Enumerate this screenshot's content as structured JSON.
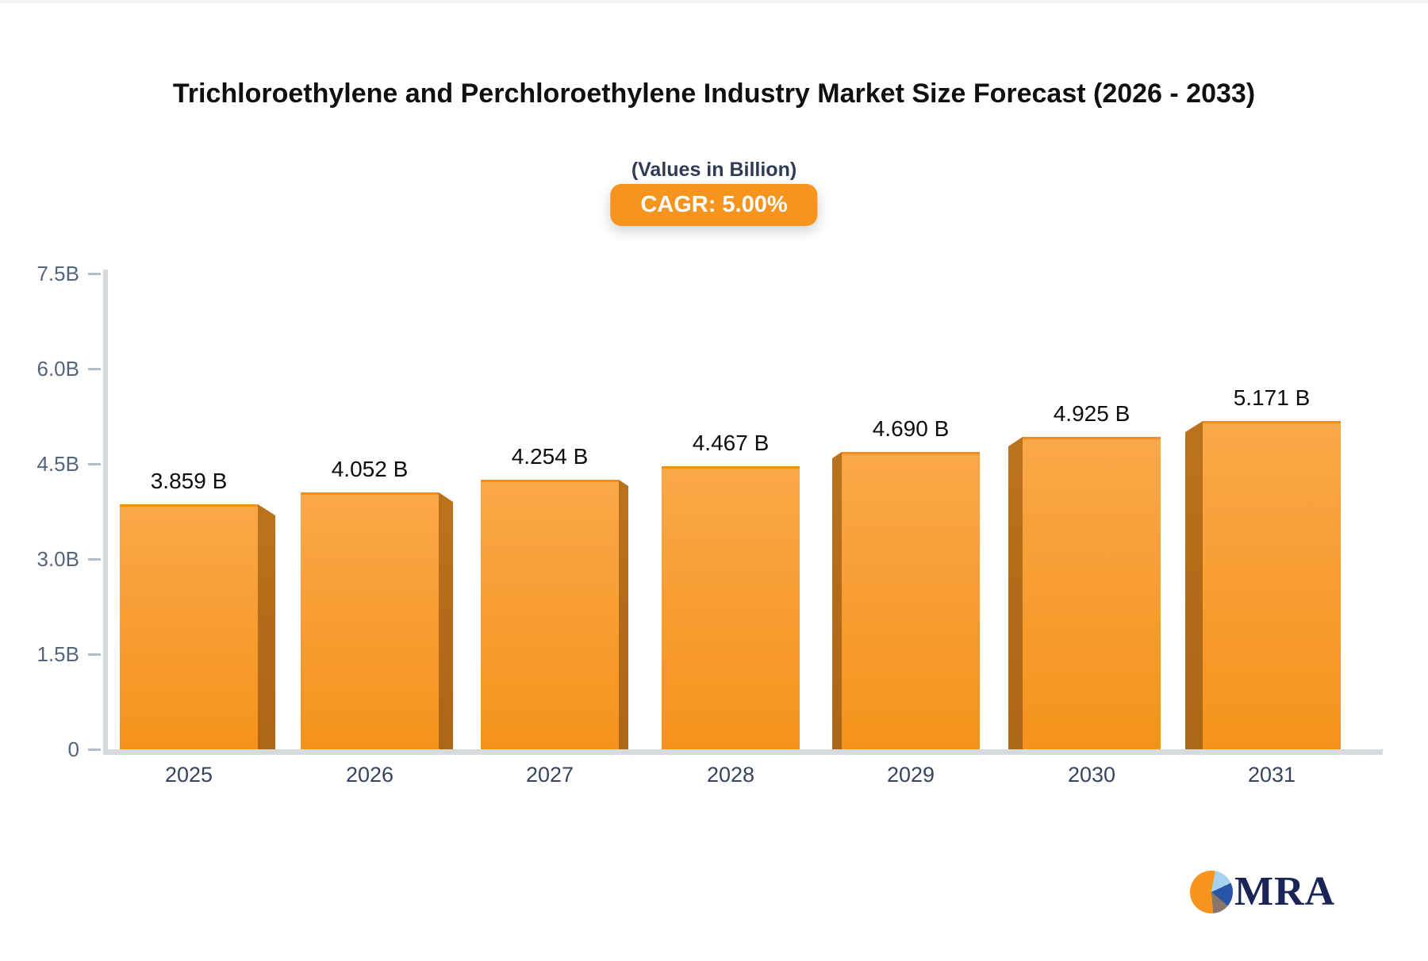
{
  "chart_data": {
    "type": "bar",
    "title": "Trichloroethylene and Perchloroethylene Industry Market Size Forecast (2026 - 2033)",
    "subtitle": "(Values in Billion)",
    "cagr_badge": "CAGR: 5.00%",
    "categories": [
      "2025",
      "2026",
      "2027",
      "2028",
      "2029",
      "2030",
      "2031"
    ],
    "values": [
      3.859,
      4.052,
      4.254,
      4.467,
      4.69,
      4.925,
      5.171
    ],
    "value_labels": [
      "3.859 B",
      "4.052 B",
      "4.254 B",
      "4.467 B",
      "4.690 B",
      "4.925 B",
      "5.171 B"
    ],
    "xlabel": "",
    "ylabel": "",
    "ylim": [
      0,
      7.5
    ],
    "yticks": [
      {
        "label": "0",
        "value": 0
      },
      {
        "label": "1.5B",
        "value": 1.5
      },
      {
        "label": "3.0B",
        "value": 3.0
      },
      {
        "label": "4.5B",
        "value": 4.5
      },
      {
        "label": "6.0B",
        "value": 6.0
      },
      {
        "label": "7.5B",
        "value": 7.5
      }
    ],
    "grid": false,
    "legend": "none",
    "style": "3d-extruded-bars",
    "colors": {
      "bar_face_top": "#F9A849",
      "bar_face_bottom": "#F6921C",
      "bar_side": "#B96F1B",
      "axis": "#D7DADE",
      "badge": "#F7941E",
      "value_label_text": "#0D0D0D",
      "tick_text": "#53657A",
      "category_text": "#36455E"
    }
  },
  "branding": {
    "logo_text": "MRA",
    "logo_icon": "pie-chart",
    "logo_colors": [
      "#F7941E",
      "#A7D3F1",
      "#2A55A5",
      "#8A7668"
    ]
  }
}
